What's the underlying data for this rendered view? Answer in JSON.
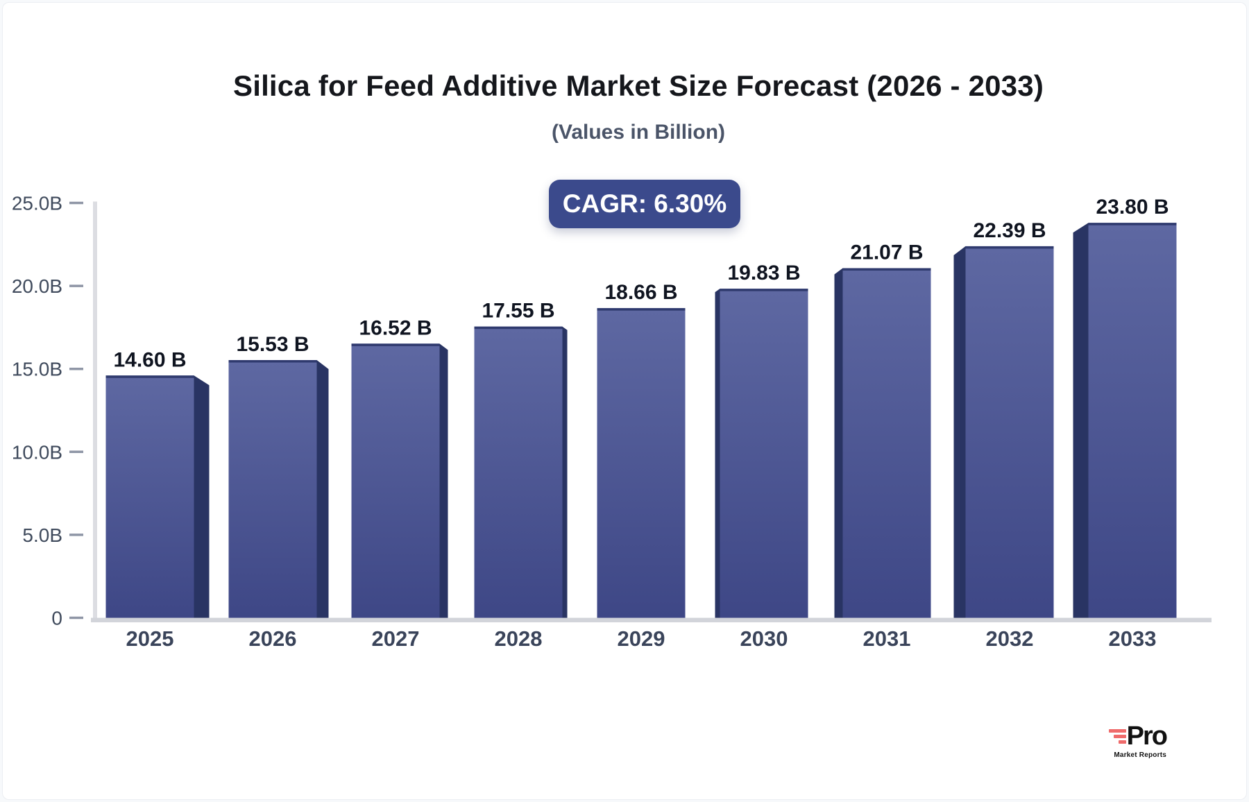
{
  "title": "Silica for Feed Additive Market Size Forecast (2026 - 2033)",
  "subtitle": "(Values in Billion)",
  "badge": {
    "label": "CAGR: 6.30%"
  },
  "chart_data": {
    "type": "bar",
    "style": "3d-perspective-bars",
    "categories": [
      "2025",
      "2026",
      "2027",
      "2028",
      "2029",
      "2030",
      "2031",
      "2032",
      "2033"
    ],
    "values": [
      14.6,
      15.53,
      16.52,
      17.55,
      18.66,
      19.83,
      21.07,
      22.39,
      23.8
    ],
    "bar_labels": [
      "14.60 B",
      "15.53 B",
      "16.52 B",
      "17.55 B",
      "18.66 B",
      "19.83 B",
      "21.07 B",
      "22.39 B",
      "23.80 B"
    ],
    "ytick_labels": [
      "0",
      "5.0B",
      "10.0B",
      "15.0B",
      "20.0B",
      "25.0B"
    ],
    "ytick_values": [
      0,
      5,
      10,
      15,
      20,
      25
    ],
    "ylim": [
      0,
      25
    ],
    "xlabel": "",
    "ylabel": "",
    "grid": false,
    "legend": "none"
  },
  "colors": {
    "bar_face_top": "#5e68a2",
    "bar_face_bottom": "#3e4786",
    "bar_side": "#293463",
    "bar_top_edge": "#2f3a6e",
    "badge_bg": "#3b4a8c",
    "badge_text": "#ffffff",
    "axis_line": "#dcdde2",
    "baseline": "#d2d4da",
    "tick_dash": "#8f96a6",
    "tick_text": "#3f4a5c",
    "value_text": "#0f1420",
    "year_text": "#3a445a",
    "logo_red": "#ef6b6b",
    "logo_text": "#111111"
  },
  "logo": {
    "name": "Pro",
    "subtext": "Market Reports"
  }
}
